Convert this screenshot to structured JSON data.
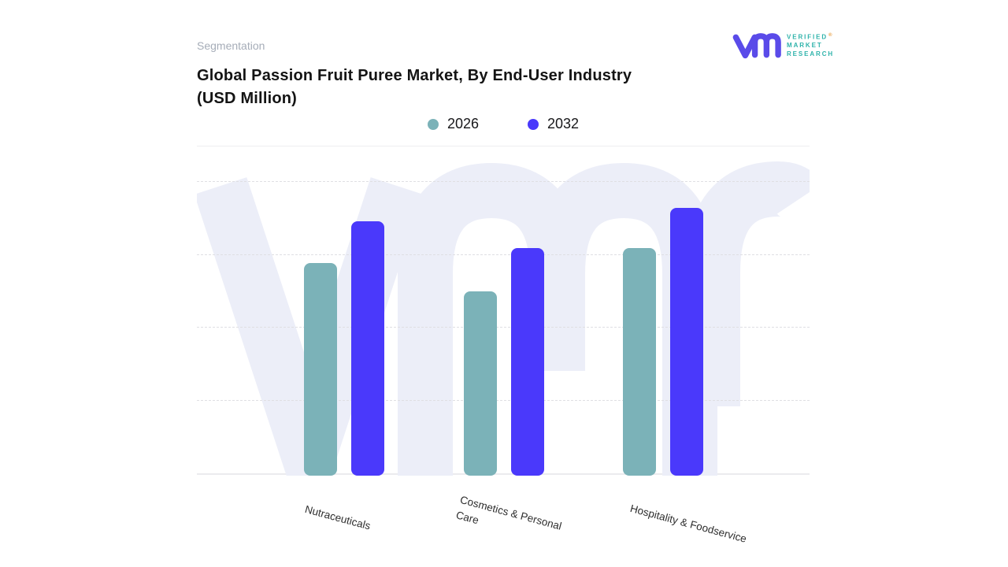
{
  "header": {
    "eyebrow": "Segmentation",
    "title": "Global Passion Fruit Puree Market, By End-User Industry (USD Million)"
  },
  "logo": {
    "brand_mark": "vmr-monogram",
    "lines": [
      "VERIFIED",
      "MARKET",
      "RESEARCH"
    ],
    "registered_mark": "®",
    "colors": {
      "mark": "#5a4be9",
      "text": "#2fb3ab",
      "registered": "#e89b3c"
    }
  },
  "chart_data": {
    "type": "bar",
    "title": "Global Passion Fruit Puree Market, By End-User Industry (USD Million)",
    "units": "USD Million",
    "categories": [
      "Nutraceuticals",
      "Cosmetics & Personal Care",
      "Hospitality & Foodservice"
    ],
    "series": [
      {
        "name": "2026",
        "color": "#7bb2b8",
        "values_pct": [
          64.6,
          56.0,
          69.1
        ]
      },
      {
        "name": "2032",
        "color": "#4a39fb",
        "values_pct": [
          77.3,
          69.1,
          81.3
        ]
      }
    ],
    "value_axis": {
      "labels_visible": false,
      "note": "No numeric tick labels are shown in the chart; values_pct are bar heights estimated as percent of the plot-area height."
    },
    "gridlines": {
      "orientation": "horizontal",
      "style": "dashed",
      "count": 4
    },
    "legend_position": "top-center",
    "x_tick_rotation_deg": 15,
    "background_watermark": "vmr-monogram"
  }
}
